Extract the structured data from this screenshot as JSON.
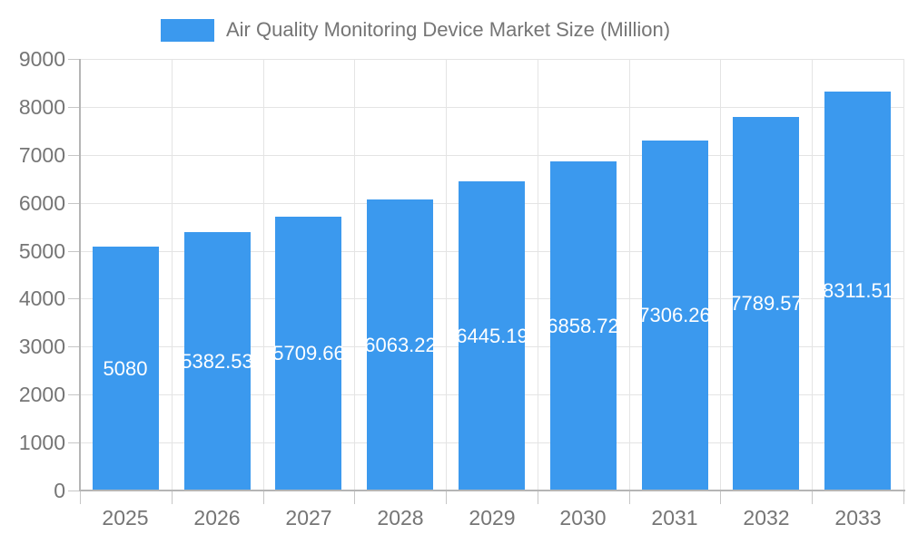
{
  "legend": {
    "label": "Air Quality Monitoring Device Market Size (Million)"
  },
  "colors": {
    "bar": "#3b99ee",
    "grid": "#e4e4e4",
    "axis": "#b5b5b5",
    "tick": "#c6c6c6",
    "label_text": "#757575",
    "value_text": "#ffffff",
    "background": "#ffffff"
  },
  "chart_data": {
    "type": "bar",
    "title": "Air Quality Monitoring Device Market Size (Million)",
    "categories": [
      "2025",
      "2026",
      "2027",
      "2028",
      "2029",
      "2030",
      "2031",
      "2032",
      "2033"
    ],
    "values": [
      5080,
      5382.53,
      5709.66,
      6063.22,
      6445.19,
      6858.72,
      7306.26,
      7789.57,
      8311.51
    ],
    "value_labels": [
      "5080",
      "5382.53",
      "5709.66",
      "6063.22",
      "6445.19",
      "6858.72",
      "7306.26",
      "7789.57",
      "8311.51"
    ],
    "xlabel": "",
    "ylabel": "",
    "ylim": [
      0,
      9000
    ],
    "ytick_step": 1000,
    "grid": true,
    "legend_position": "top",
    "value_label_position": "center-inside",
    "bar_color": "#3b99ee"
  }
}
